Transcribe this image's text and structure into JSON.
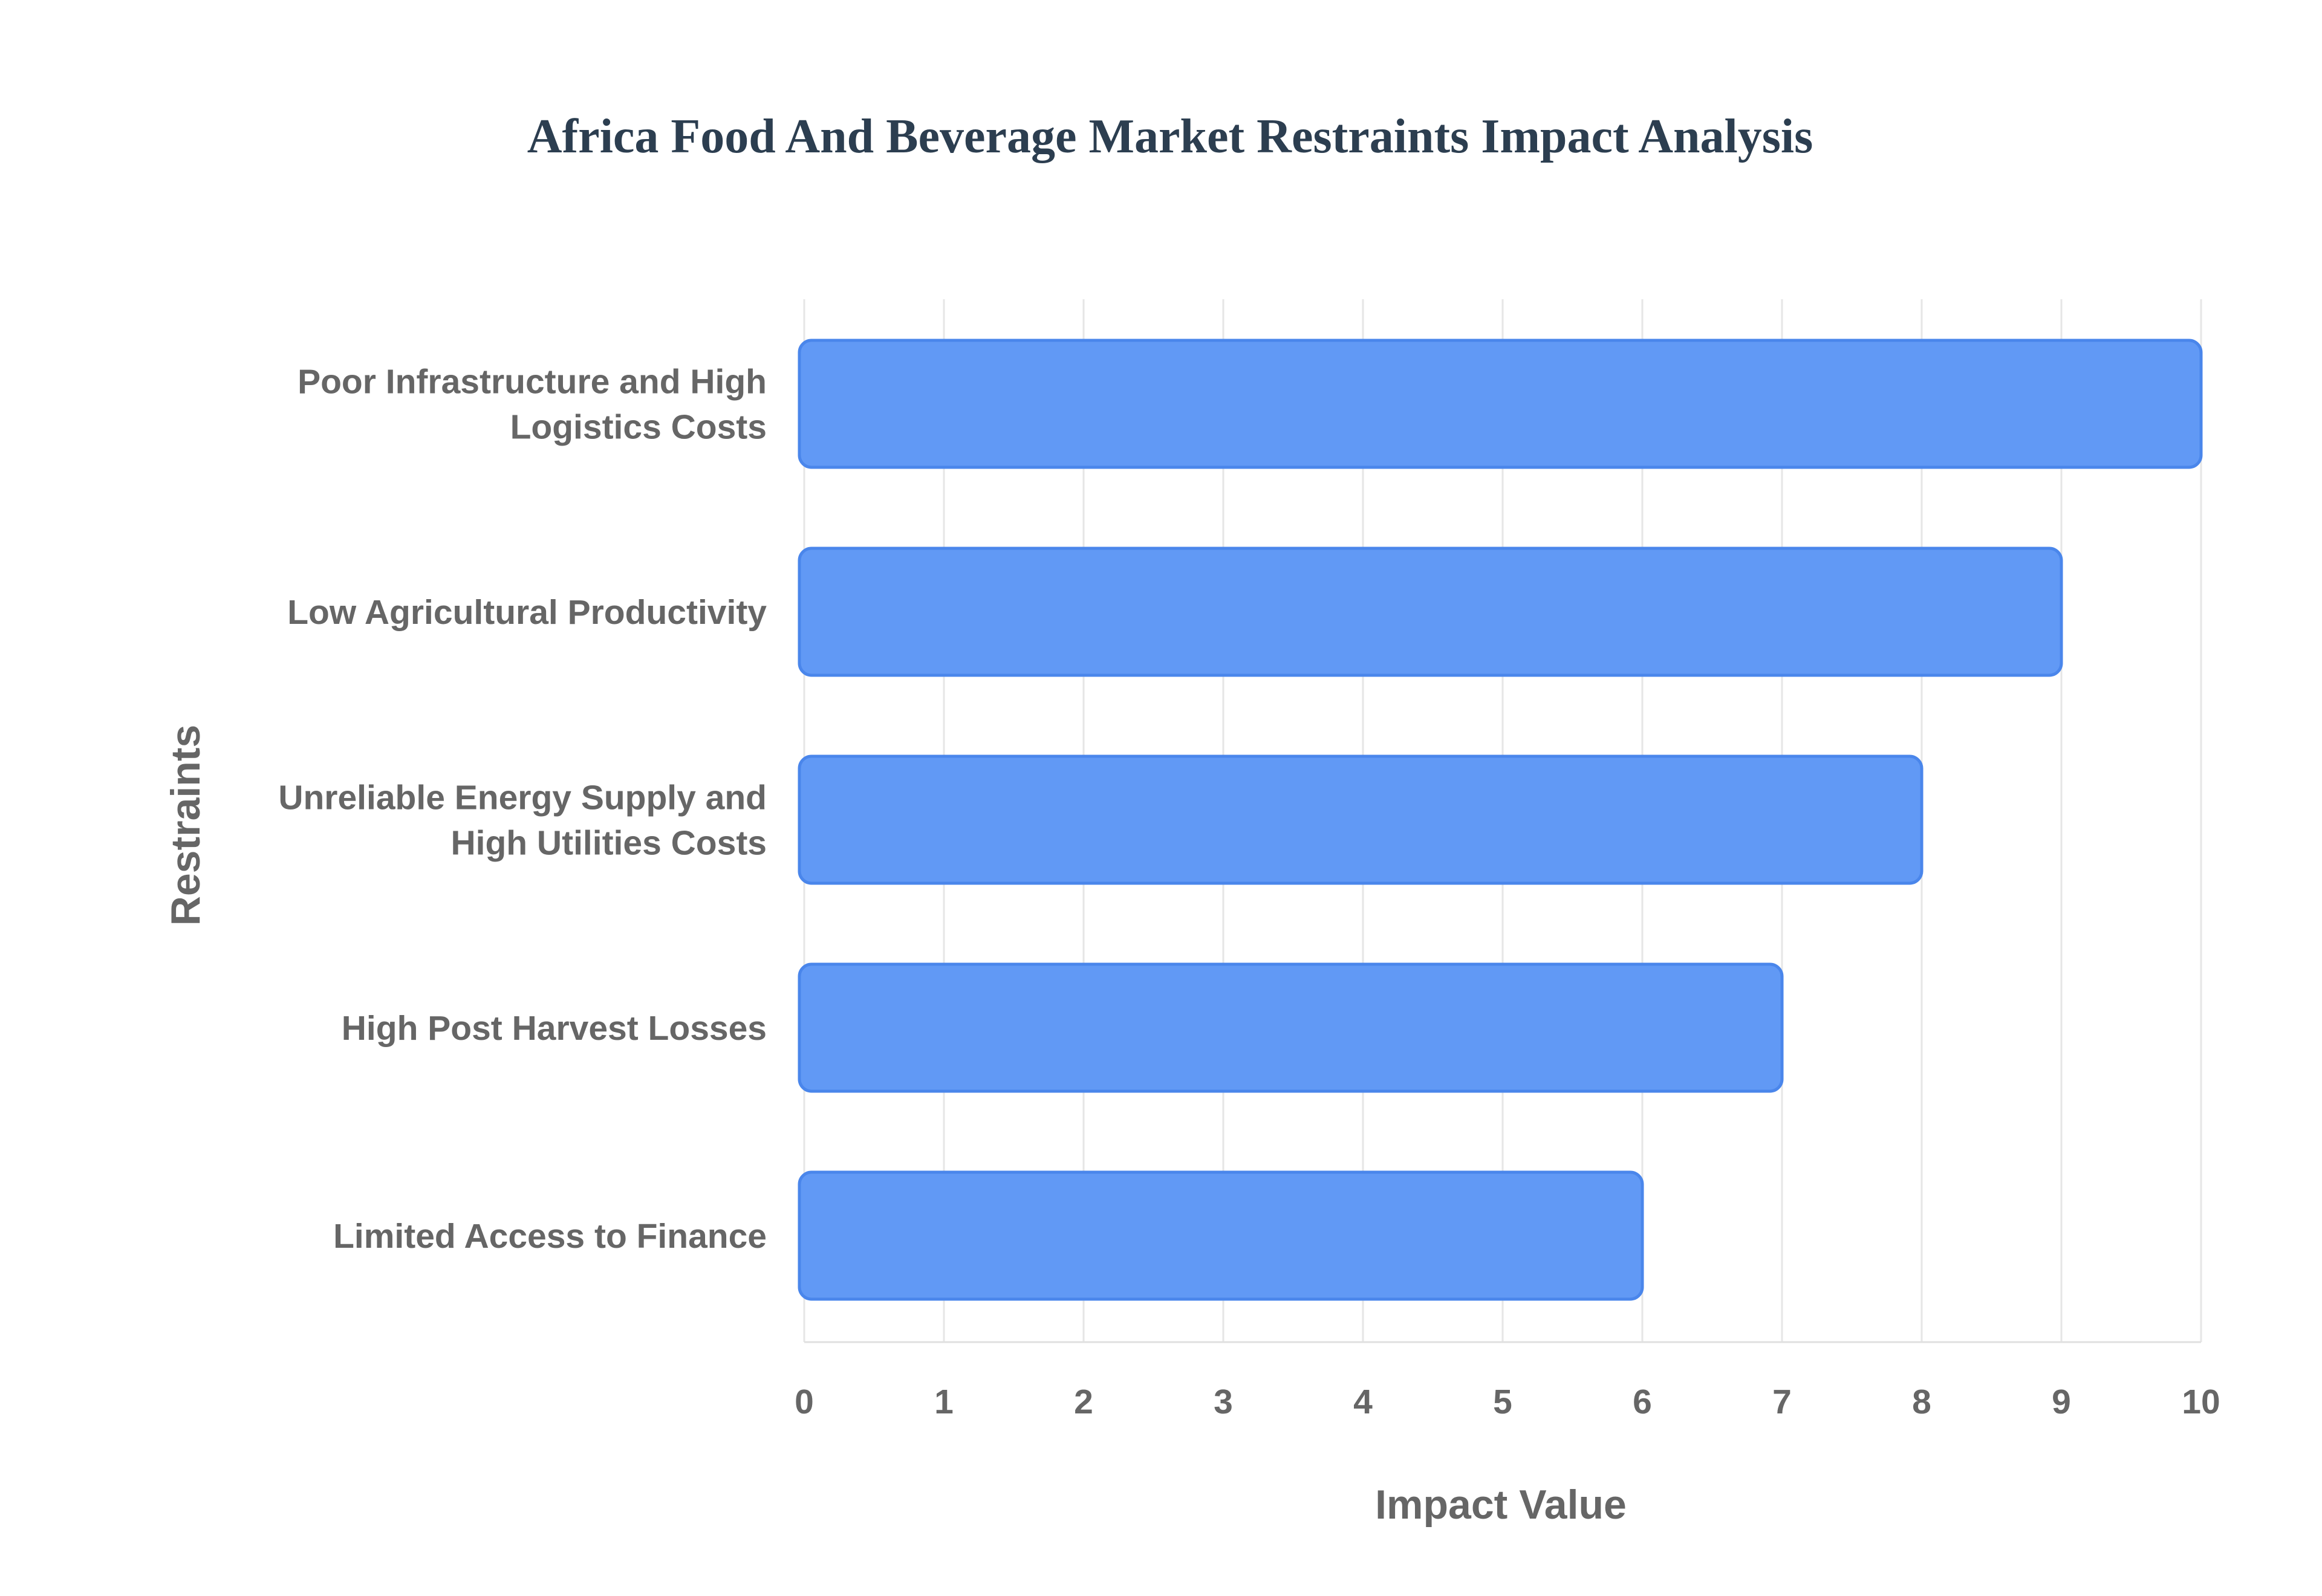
{
  "chart_data": {
    "type": "bar",
    "orientation": "horizontal",
    "title": "Africa Food And Beverage Market Restraints Impact Analysis",
    "xlabel": "Impact Value",
    "ylabel": "Restraints",
    "categories": [
      [
        "Poor Infrastructure and High",
        "Logistics Costs"
      ],
      [
        "Low Agricultural Productivity"
      ],
      [
        "Unreliable Energy Supply and",
        "High Utilities Costs"
      ],
      [
        "High Post Harvest Losses"
      ],
      [
        "Limited Access to Finance"
      ]
    ],
    "values": [
      10,
      9,
      8,
      7,
      6
    ],
    "xlim": [
      0,
      10
    ],
    "xticks": [
      "0",
      "1",
      "2",
      "3",
      "4",
      "5",
      "6",
      "7",
      "8",
      "9",
      "10"
    ],
    "grid": true,
    "legend": "none",
    "colors": {
      "bar_fill": "#6199f5",
      "bar_stroke": "#4a86eb",
      "title": "#2c3e50",
      "labels": "#666666",
      "grid": "#e6e6e6"
    }
  }
}
